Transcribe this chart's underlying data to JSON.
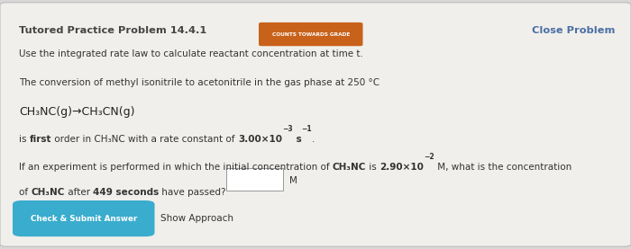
{
  "bg_color": "#d8d8d8",
  "card_color": "#f0efeb",
  "title_text": "Tutored Practice Problem 14.4.1",
  "badge_text": "COUNTS TOWARDS GRADE",
  "badge_bg": "#c8621a",
  "badge_fg": "#ffffff",
  "close_text": "Close Problem",
  "subtitle": "Use the integrated rate law to calculate reactant concentration at time t.",
  "line1": "The conversion of methyl isonitrile to acetonitrile in the gas phase at 250 °C",
  "rxn_line": "CH₃NC(g)→CH₃CN(g)",
  "line2_prefix": "is ",
  "line2_bold": "first",
  "line2_mid": " order in CH₃NC with a rate constant of ",
  "line2_bold2": "3.00×10",
  "line2_sup1": "−3",
  "line2_end": " s",
  "line2_sup2": "−1",
  "line2_period": ".",
  "line3_pre": "If an experiment is performed in which the initial concentration of ",
  "line3_bold1": "CH₃NC",
  "line3_mid": " is ",
  "line3_bold2": "2.90×10",
  "line3_sup": "−2",
  "line3_end": " M, what is the concentration",
  "line4_pre": "of ",
  "line4_bold": "CH₃NC",
  "line4_mid": " after ",
  "line4_bold2": "449 seconds",
  "line4_end": " have passed?",
  "unit_M": "M",
  "btn_text": "Check & Submit Answer",
  "btn_color": "#3aacce",
  "btn_text_color": "#ffffff",
  "show_approach": "Show Approach",
  "title_color": "#5a5a5a",
  "close_color": "#4a6fa5",
  "text_color": "#333333"
}
